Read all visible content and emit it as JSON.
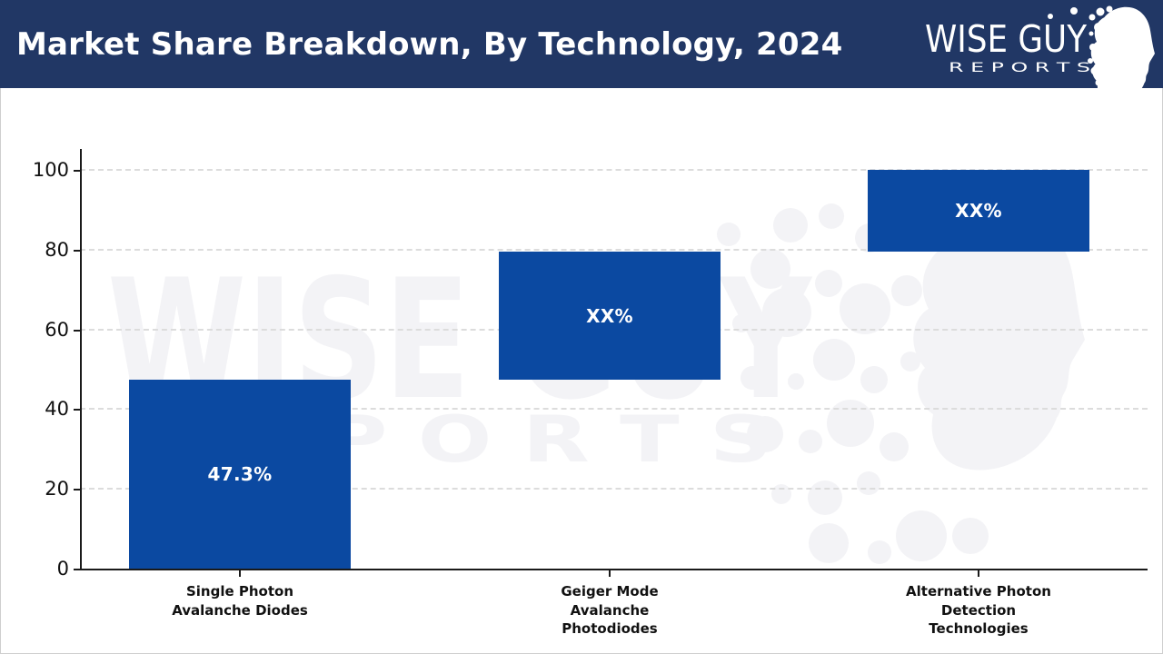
{
  "header": {
    "title": "Market Share Breakdown, By Technology, 2024",
    "logo": {
      "line1": "WISE GUY",
      "line2": "R E P O R T S"
    }
  },
  "watermark": {
    "line1": "WISE GUY",
    "line2": "R E P O R T S"
  },
  "colors": {
    "header_bg": "#213765",
    "bar": "#0b49a1",
    "bar_label": "#ffffff",
    "axis": "#1a1a1a",
    "gridline": "#dcdcdc",
    "watermark": "#f3f3f6"
  },
  "chart_data": {
    "type": "bar",
    "subtype": "stacked-waterfall",
    "title": "Market Share Breakdown, By Technology, 2024",
    "xlabel": "",
    "ylabel": "",
    "yticks": [
      0,
      20,
      40,
      60,
      80,
      100
    ],
    "ylim": [
      0,
      105
    ],
    "grid": "horizontal-dashed",
    "legend": "none",
    "categories": [
      "Single Photon\nAvalanche Diodes",
      "Geiger Mode\nAvalanche\nPhotodiodes",
      "Alternative Photon\nDetection\nTechnologies"
    ],
    "segments": [
      {
        "category": "Single Photon Avalanche Diodes",
        "label": "47.3%",
        "base": 0,
        "top": 47.3
      },
      {
        "category": "Geiger Mode Avalanche Photodiodes",
        "label": "XX%",
        "base": 47.3,
        "top": 79.5
      },
      {
        "category": "Alternative Photon Detection Technologies",
        "label": "XX%",
        "base": 79.5,
        "top": 100
      }
    ]
  }
}
